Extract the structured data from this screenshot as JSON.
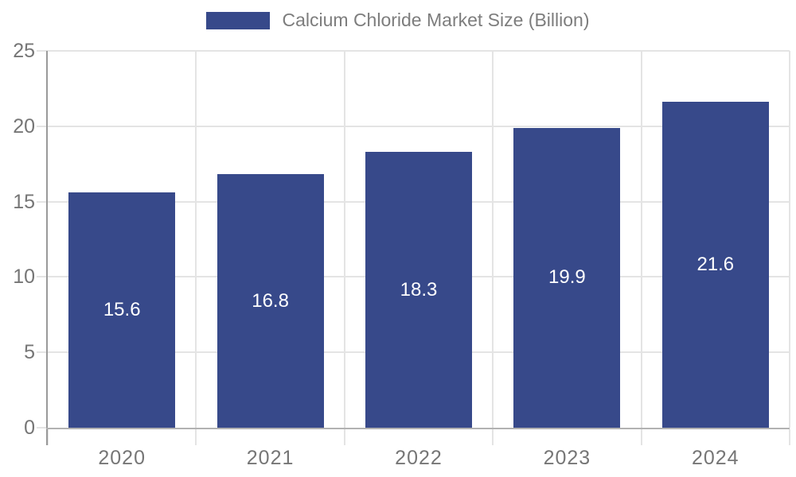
{
  "legend": {
    "label": "Calcium Chloride Market Size (Billion)"
  },
  "chart_data": {
    "type": "bar",
    "title": "Calcium Chloride Market Size (Billion)",
    "series": [
      {
        "name": "Calcium Chloride Market Size (Billion)",
        "values": [
          15.6,
          16.8,
          18.3,
          19.9,
          21.6
        ]
      }
    ],
    "categories": [
      "2020",
      "2021",
      "2022",
      "2023",
      "2024"
    ],
    "value_labels": [
      "15.6",
      "16.8",
      "18.3",
      "19.9",
      "21.6"
    ],
    "xlabel": "",
    "ylabel": "",
    "ylim": [
      0,
      25
    ],
    "yticks": [
      0,
      5,
      10,
      15,
      20,
      25
    ],
    "ytick_labels": [
      "0",
      "5",
      "10",
      "15",
      "20",
      "25"
    ],
    "grid": true,
    "legend_position": "top-center",
    "value_label_position": "inside-center",
    "colors": {
      "bar_fill": "#37498a",
      "value_label_text": "#ffffff",
      "legend_text": "#7d7d7d",
      "tick_label_text": "#767676",
      "axis_line": "#9a9a9a",
      "gridline": "#e4e4e4",
      "background": "#ffffff"
    }
  }
}
